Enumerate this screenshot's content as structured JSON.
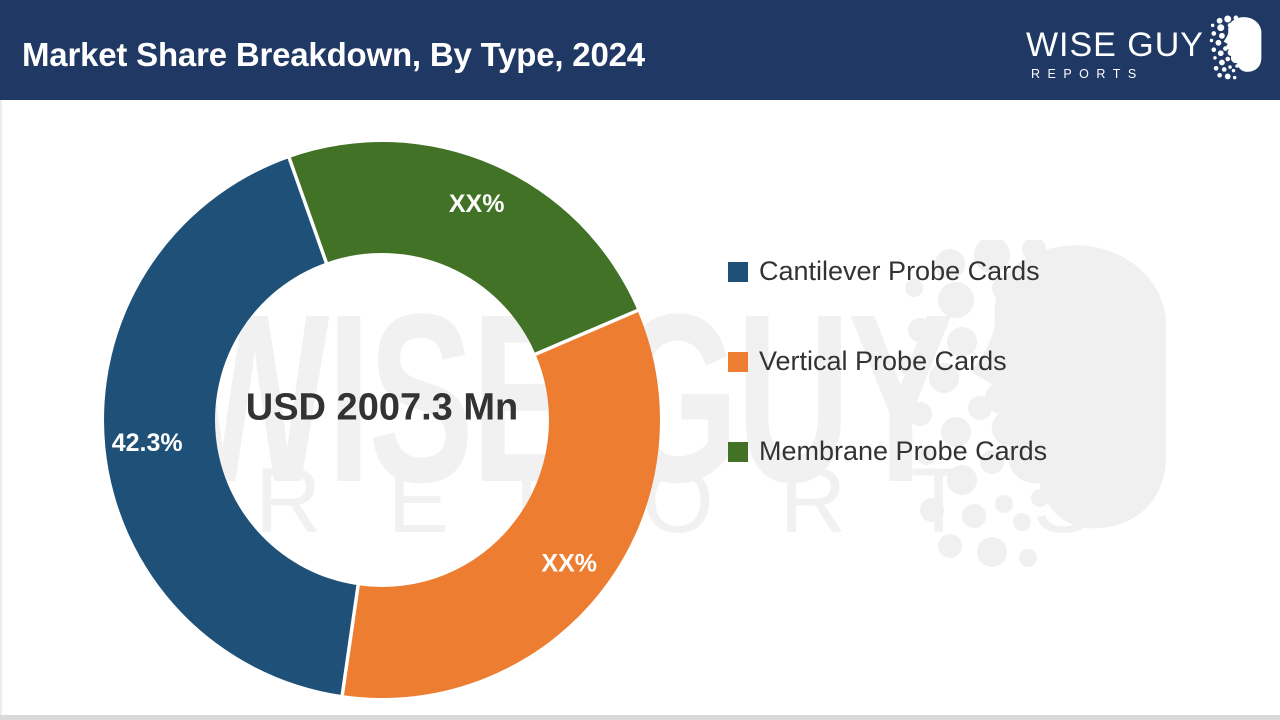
{
  "header": {
    "title": "Market Share Breakdown, By Type, 2024",
    "logo": {
      "line1": "WISE GUY",
      "line2": "REPORTS"
    }
  },
  "watermark": {
    "line1": "WISE GUY",
    "line2": "REPORTS"
  },
  "chart_data": {
    "type": "pie",
    "subtype": "donut",
    "title": "Market Share Breakdown, By Type, 2024",
    "center_label": "USD 2007.3 Mn",
    "start_angle_deg": 109.5,
    "direction": "counterclockwise",
    "legend_position": "right",
    "slices": [
      {
        "label": "Cantilever Probe Cards",
        "display_value": "42.3%",
        "percent_est": 42.3,
        "color": "#1F5178"
      },
      {
        "label": "Vertical Probe Cards",
        "display_value": "XX%",
        "percent_est": 33.73,
        "color": "#ED7D31"
      },
      {
        "label": "Membrane Probe Cards",
        "display_value": "XX%",
        "percent_est": 23.97,
        "color": "#417226"
      }
    ]
  },
  "colors": {
    "header_bg": "#203864",
    "slice_blue": "#1F5178",
    "slice_orange": "#ED7D31",
    "slice_green": "#417226",
    "text_dark": "#333333",
    "watermark": "#f1f1f1",
    "footer_strip": "#d9d9d9"
  }
}
